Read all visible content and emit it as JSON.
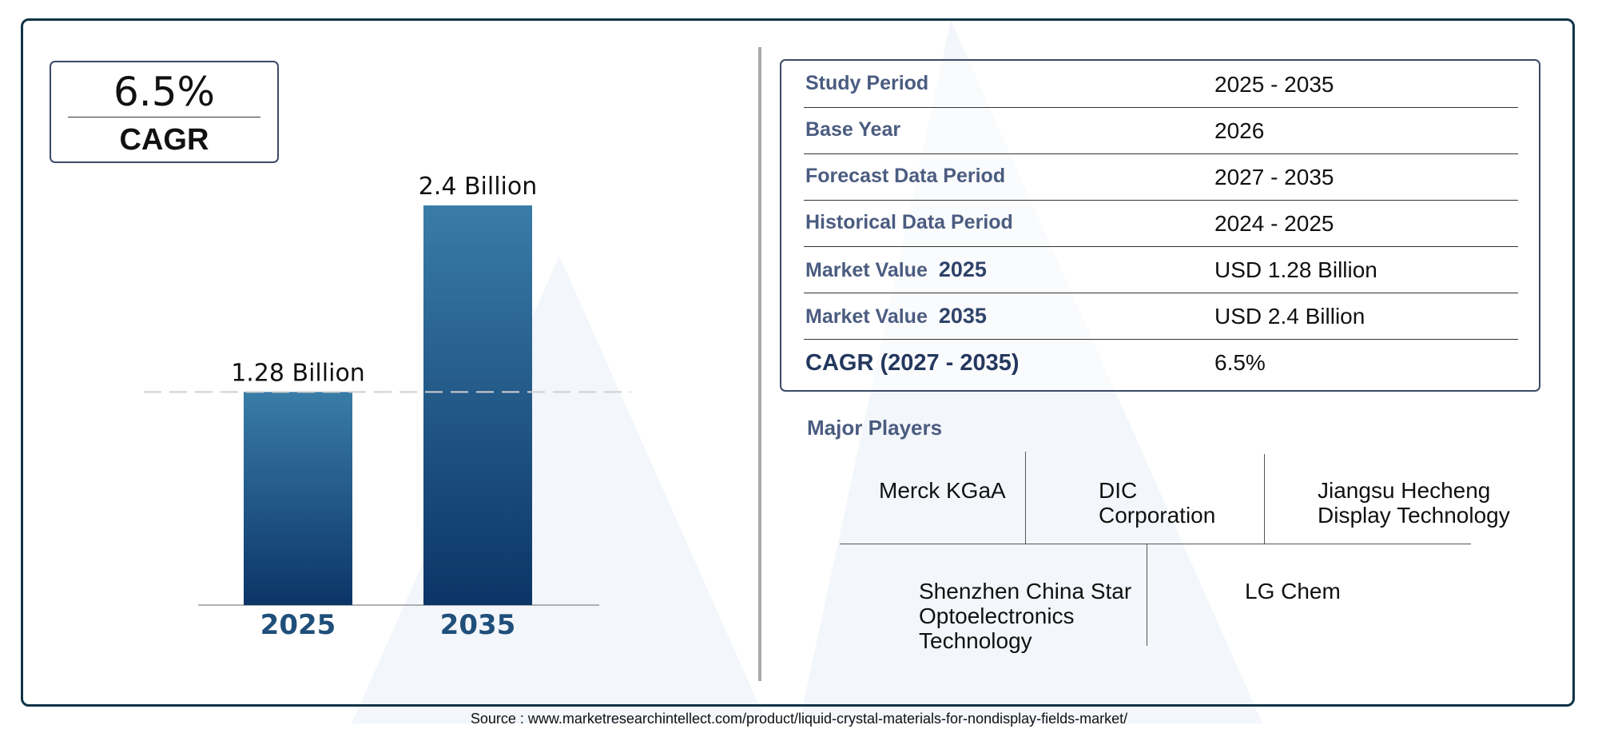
{
  "cagr_box": {
    "value": "6.5%",
    "label": "CAGR"
  },
  "chart_data": {
    "type": "bar",
    "categories": [
      "2025",
      "2035"
    ],
    "values": [
      1.28,
      2.4
    ],
    "data_labels": [
      "1.28 Billion",
      "2.4 Billion"
    ],
    "unit": "Billion",
    "ylim": [
      0,
      2.4
    ],
    "grid": false,
    "reference_line": 1.28
  },
  "info_table": {
    "rows": [
      {
        "key": "Study Period",
        "value": "2025 - 2035"
      },
      {
        "key": "Base Year",
        "value": "2026"
      },
      {
        "key": "Forecast Data Period",
        "value": "2027 - 2035"
      },
      {
        "key": "Historical Data Period",
        "value": "2024 - 2025"
      },
      {
        "key": "Market Value",
        "key_year": "2025",
        "value": "USD 1.28 Billion"
      },
      {
        "key": "Market Value",
        "key_year": "2035",
        "value": "USD 2.4 Billion"
      },
      {
        "key": "CAGR (2027 - 2035)",
        "value": "6.5%"
      }
    ]
  },
  "major_players": {
    "title": "Major Players",
    "players": [
      "Merck KGaA",
      "DIC Corporation",
      "Jiangsu Hecheng Display Technology",
      "Shenzhen China Star Optoelectronics Technology",
      "LG Chem"
    ]
  },
  "source": "Source : www.marketresearchintellect.com/product/liquid-crystal-materials-for-nondisplay-fields-market/",
  "colors": {
    "bar_top": "#3a7ca8",
    "bar_bottom": "#0b3566",
    "frame": "#0f3347",
    "key_text": "#4b5c80",
    "category_text": "#1f4f7a"
  }
}
